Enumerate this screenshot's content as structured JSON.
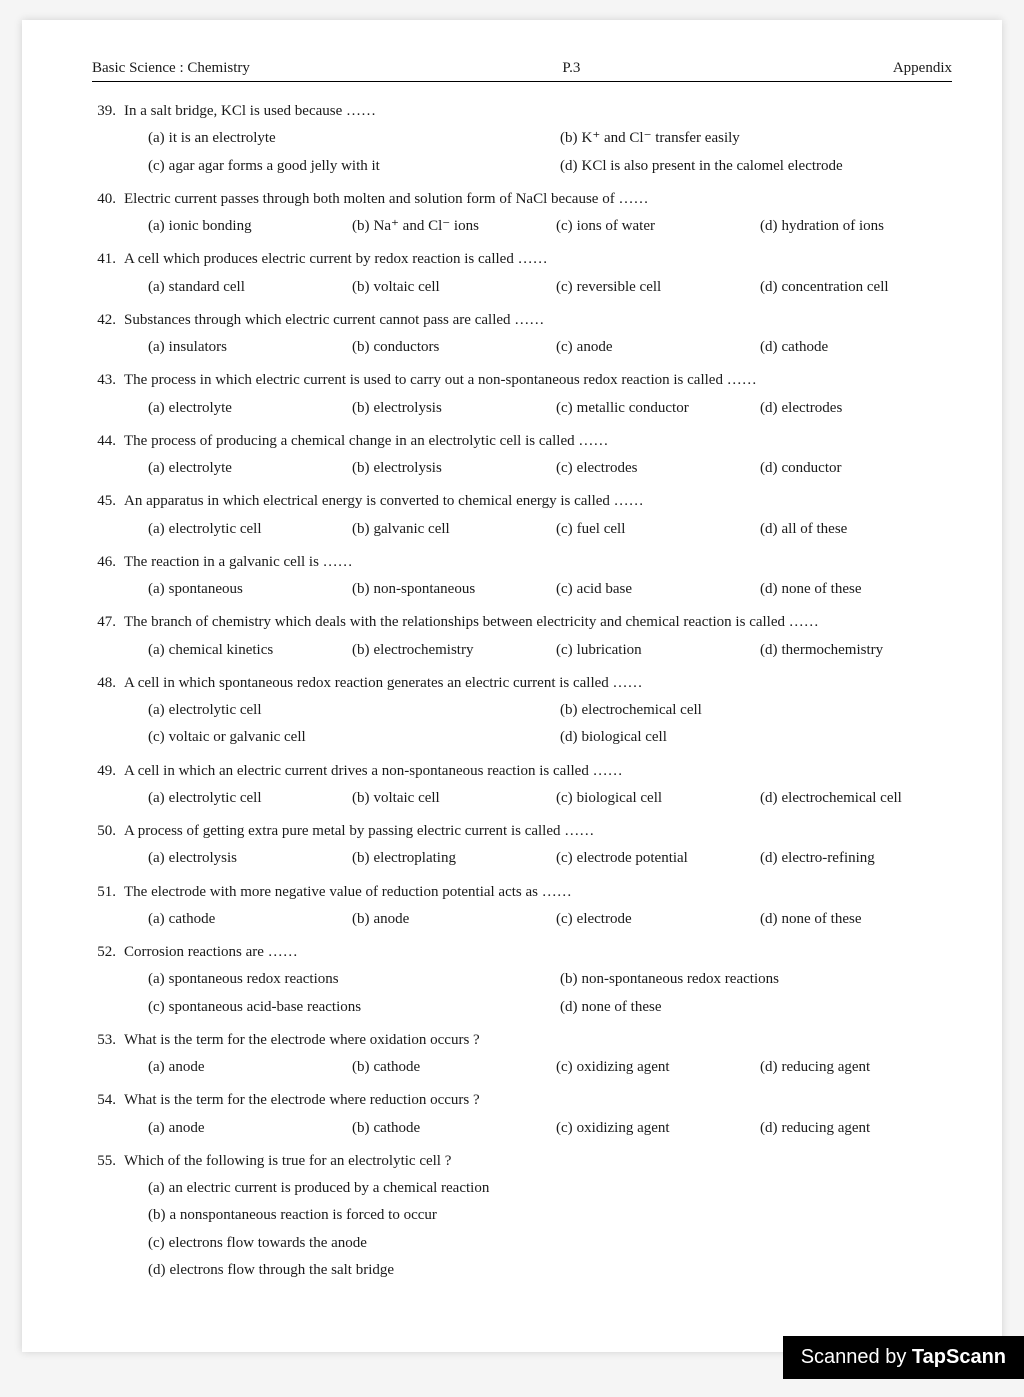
{
  "header": {
    "left": "Basic Science : Chemistry",
    "center": "P.3",
    "right": "Appendix"
  },
  "questions": [
    {
      "num": "39.",
      "text": "In a salt bridge, KCl is used because ……",
      "layout": "two-col",
      "opts": [
        {
          "l": "(a)",
          "t": "it is an electrolyte"
        },
        {
          "l": "(b)",
          "t": "K⁺ and Cl⁻ transfer easily"
        },
        {
          "l": "(c)",
          "t": "agar agar forms a good jelly with it"
        },
        {
          "l": "(d)",
          "t": "KCl is also present in the calomel electrode"
        }
      ]
    },
    {
      "num": "40.",
      "text": "Electric current passes through both molten and solution form of NaCl because of ……",
      "layout": "four-col",
      "opts": [
        {
          "l": "(a)",
          "t": "ionic bonding"
        },
        {
          "l": "(b)",
          "t": "Na⁺ and Cl⁻ ions"
        },
        {
          "l": "(c)",
          "t": "ions of water"
        },
        {
          "l": "(d)",
          "t": "hydration of ions"
        }
      ]
    },
    {
      "num": "41.",
      "text": "A cell which produces electric current by redox reaction is called ……",
      "layout": "four-col",
      "opts": [
        {
          "l": "(a)",
          "t": "standard cell"
        },
        {
          "l": "(b)",
          "t": "voltaic cell"
        },
        {
          "l": "(c)",
          "t": "reversible cell"
        },
        {
          "l": "(d)",
          "t": "concentration cell"
        }
      ]
    },
    {
      "num": "42.",
      "text": "Substances through which electric current cannot pass are called ……",
      "layout": "four-col",
      "opts": [
        {
          "l": "(a)",
          "t": "insulators"
        },
        {
          "l": "(b)",
          "t": "conductors"
        },
        {
          "l": "(c)",
          "t": "anode"
        },
        {
          "l": "(d)",
          "t": "cathode"
        }
      ]
    },
    {
      "num": "43.",
      "text": "The process in which electric current is used to carry out a non-spontaneous redox reaction is called ……",
      "layout": "four-col",
      "opts": [
        {
          "l": "(a)",
          "t": "electrolyte"
        },
        {
          "l": "(b)",
          "t": "electrolysis"
        },
        {
          "l": "(c)",
          "t": "metallic conductor"
        },
        {
          "l": "(d)",
          "t": "electrodes"
        }
      ]
    },
    {
      "num": "44.",
      "text": "The process of producing a chemical change in an electrolytic cell is called ……",
      "layout": "four-col",
      "opts": [
        {
          "l": "(a)",
          "t": "electrolyte"
        },
        {
          "l": "(b)",
          "t": "electrolysis"
        },
        {
          "l": "(c)",
          "t": "electrodes"
        },
        {
          "l": "(d)",
          "t": "conductor"
        }
      ]
    },
    {
      "num": "45.",
      "text": "An apparatus in which electrical energy is converted to chemical energy is called ……",
      "layout": "four-col",
      "opts": [
        {
          "l": "(a)",
          "t": "electrolytic cell"
        },
        {
          "l": "(b)",
          "t": "galvanic cell"
        },
        {
          "l": "(c)",
          "t": "fuel cell"
        },
        {
          "l": "(d)",
          "t": "all of these"
        }
      ]
    },
    {
      "num": "46.",
      "text": "The reaction in a galvanic cell is ……",
      "layout": "four-col",
      "opts": [
        {
          "l": "(a)",
          "t": "spontaneous"
        },
        {
          "l": "(b)",
          "t": "non-spontaneous"
        },
        {
          "l": "(c)",
          "t": "acid base"
        },
        {
          "l": "(d)",
          "t": "none of these"
        }
      ]
    },
    {
      "num": "47.",
      "text": "The branch of chemistry which deals with the relationships between electricity and chemical reaction is called ……",
      "layout": "four-col",
      "opts": [
        {
          "l": "(a)",
          "t": "chemical kinetics"
        },
        {
          "l": "(b)",
          "t": "electrochemistry"
        },
        {
          "l": "(c)",
          "t": "lubrication"
        },
        {
          "l": "(d)",
          "t": "thermochemistry"
        }
      ]
    },
    {
      "num": "48.",
      "text": "A cell in which spontaneous redox reaction generates an electric current is called ……",
      "layout": "two-col",
      "opts": [
        {
          "l": "(a)",
          "t": "electrolytic cell"
        },
        {
          "l": "(b)",
          "t": "electrochemical cell"
        },
        {
          "l": "(c)",
          "t": "voltaic or galvanic cell"
        },
        {
          "l": "(d)",
          "t": "biological cell"
        }
      ]
    },
    {
      "num": "49.",
      "text": "A cell in which an electric current drives a non-spontaneous reaction is called ……",
      "layout": "four-col",
      "opts": [
        {
          "l": "(a)",
          "t": "electrolytic cell"
        },
        {
          "l": "(b)",
          "t": "voltaic cell"
        },
        {
          "l": "(c)",
          "t": "biological cell"
        },
        {
          "l": "(d)",
          "t": "electrochemical cell"
        }
      ]
    },
    {
      "num": "50.",
      "text": "A process of getting extra pure metal by passing electric current is called ……",
      "layout": "four-col",
      "opts": [
        {
          "l": "(a)",
          "t": "electrolysis"
        },
        {
          "l": "(b)",
          "t": "electroplating"
        },
        {
          "l": "(c)",
          "t": "electrode potential"
        },
        {
          "l": "(d)",
          "t": "electro-refining"
        }
      ]
    },
    {
      "num": "51.",
      "text": "The electrode with more negative value of reduction potential acts as ……",
      "layout": "four-col",
      "opts": [
        {
          "l": "(a)",
          "t": "cathode"
        },
        {
          "l": "(b)",
          "t": "anode"
        },
        {
          "l": "(c)",
          "t": "electrode"
        },
        {
          "l": "(d)",
          "t": "none of these"
        }
      ]
    },
    {
      "num": "52.",
      "text": "Corrosion reactions are ……",
      "layout": "two-col",
      "opts": [
        {
          "l": "(a)",
          "t": "spontaneous redox reactions"
        },
        {
          "l": "(b)",
          "t": "non-spontaneous redox reactions"
        },
        {
          "l": "(c)",
          "t": "spontaneous acid-base reactions"
        },
        {
          "l": "(d)",
          "t": "none of these"
        }
      ]
    },
    {
      "num": "53.",
      "text": "What is the term for the electrode where oxidation occurs ?",
      "layout": "four-col",
      "opts": [
        {
          "l": "(a)",
          "t": "anode"
        },
        {
          "l": "(b)",
          "t": "cathode"
        },
        {
          "l": "(c)",
          "t": "oxidizing agent"
        },
        {
          "l": "(d)",
          "t": "reducing agent"
        }
      ]
    },
    {
      "num": "54.",
      "text": "What is the term for the electrode where reduction occurs ?",
      "layout": "four-col",
      "opts": [
        {
          "l": "(a)",
          "t": "anode"
        },
        {
          "l": "(b)",
          "t": "cathode"
        },
        {
          "l": "(c)",
          "t": "oxidizing agent"
        },
        {
          "l": "(d)",
          "t": "reducing agent"
        }
      ]
    },
    {
      "num": "55.",
      "text": "Which of the following is true for an electrolytic cell ?",
      "layout": "one-col",
      "opts": [
        {
          "l": "(a)",
          "t": "an electric current is produced by a chemical reaction"
        },
        {
          "l": "(b)",
          "t": "a nonspontaneous reaction is forced to occur"
        },
        {
          "l": "(c)",
          "t": "electrons flow towards the anode"
        },
        {
          "l": "(d)",
          "t": "electrons flow through the salt bridge"
        }
      ]
    }
  ],
  "scanner": {
    "prefix": "Scanned by ",
    "brand": "TapScann"
  }
}
